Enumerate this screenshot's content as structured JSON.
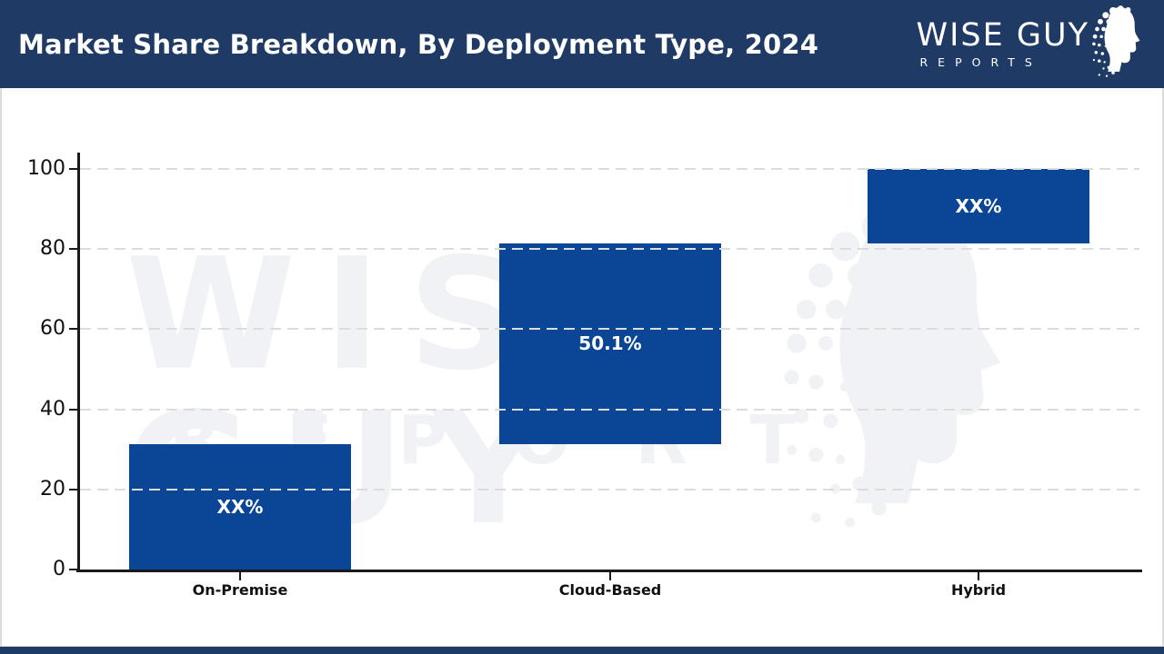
{
  "header": {
    "title": "Market Share Breakdown, By Deployment Type, 2024",
    "logo": {
      "line1": "WISE GUY",
      "line2": "REPORTS",
      "head_icon": "dotted-profile-head-icon"
    }
  },
  "watermark": {
    "line1": "WISE GUY",
    "line2": "REPORTS",
    "head_icon": "dotted-profile-head-icon"
  },
  "chart_data": {
    "type": "bar",
    "subtype": "floating-segment-waterfall",
    "title": "Market Share Breakdown, By Deployment Type, 2024",
    "categories": [
      "On-Premise",
      "Cloud-Based",
      "Hybrid"
    ],
    "segments": [
      {
        "category": "On-Premise",
        "from": 0,
        "to": 31.4,
        "value": 31.4,
        "label": "XX%"
      },
      {
        "category": "Cloud-Based",
        "from": 31.4,
        "to": 81.5,
        "value": 50.1,
        "label": "50.1%"
      },
      {
        "category": "Hybrid",
        "from": 81.5,
        "to": 100,
        "value": 18.5,
        "label": "XX%"
      }
    ],
    "yticks": [
      0,
      20,
      40,
      60,
      80,
      100
    ],
    "ylim": [
      0,
      105
    ],
    "xlabel": "",
    "ylabel": "",
    "grid": "dashed-horizontal",
    "legend": "none",
    "bar_color": "#0a4596",
    "bar_label_color": "#ffffff"
  },
  "colors": {
    "header_bg": "#203a66",
    "footer_bg": "#203a66",
    "bar": "#0a4596",
    "axis": "#1a1a1a",
    "gridline": "#dcdcdc",
    "watermark": "#f1f2f5",
    "tick_label": "#111111"
  }
}
